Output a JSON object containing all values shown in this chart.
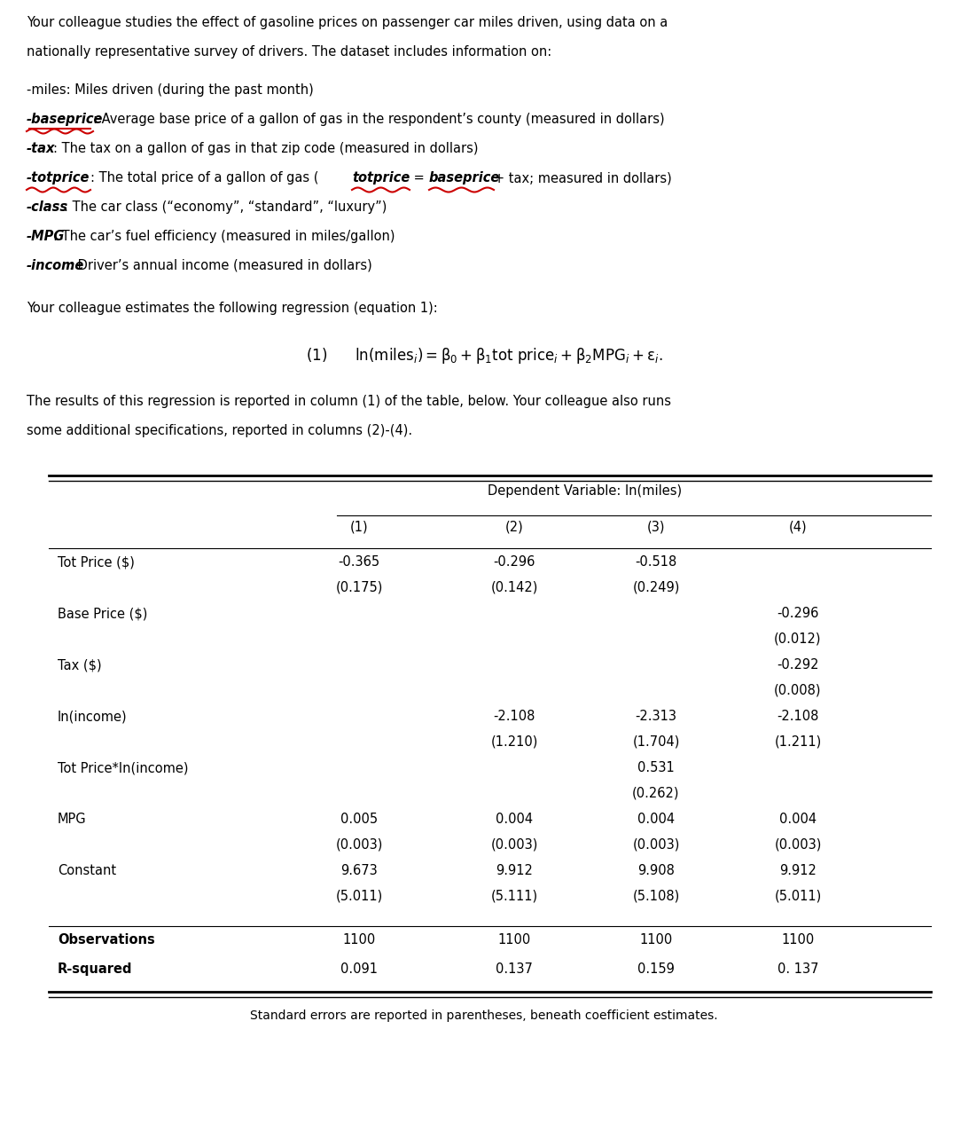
{
  "intro_text": "Your colleague studies the effect of gasoline prices on passenger car miles driven, using data on a\nnationally representative survey of drivers. The dataset includes information on:",
  "bullet_points": [
    {
      "-miles": "Miles driven (during the past month)"
    },
    {
      "-baseprice": "Average base price of a gallon of gas in the respondent’s county (measured in dollars)"
    },
    {
      "-tax": "The tax on a gallon of gas in that zip code (measured in dollars)"
    },
    {
      "-totprice": "The total price of a gallon of gas (totprice = baseprice + tax; measured in dollars)"
    },
    {
      "-class": "The car class (“economy”, “standard”, “luxury”)"
    },
    {
      "-MPG": "The car’s fuel efficiency (measured in miles/gallon)"
    },
    {
      "-income": "Driver’s annual income (measured in dollars)"
    }
  ],
  "pre_eq_text": "Your colleague estimates the following regression (equation 1):",
  "equation": "(1)      ln(milesᵢ) = β₀ + β₁tot priceᵢ + β₂MPGᵢ + εᵢ.",
  "post_eq_text": "The results of this regression is reported in column (1) of the table, below. Your colleague also runs\nsome additional specifications, reported in columns (2)-(4).",
  "table_header": "Dependent Variable: ln(miles)",
  "col_headers": [
    "",
    "(1)",
    "(2)",
    "(3)",
    "(4)"
  ],
  "rows": [
    {
      "label": "Tot Price ($)",
      "vals": [
        "-0.365",
        "-0.296",
        "-0.518",
        ""
      ],
      "se": [
        "(0.175)",
        "(0.142)",
        "(0.249)",
        ""
      ]
    },
    {
      "label": "Base Price ($)",
      "vals": [
        "",
        "",
        "",
        "-0.296"
      ],
      "se": [
        "",
        "",
        "",
        "(0.012)"
      ]
    },
    {
      "label": "Tax ($)",
      "vals": [
        "",
        "",
        "",
        "-0.292"
      ],
      "se": [
        "",
        "",
        "",
        "(0.008)"
      ]
    },
    {
      "label": "In(income)",
      "vals": [
        "",
        "-2.108",
        "-2.313",
        "-2.108"
      ],
      "se": [
        "",
        "(1.210)",
        "(1.704)",
        "(1.211)"
      ]
    },
    {
      "label": "Tot Price*In(income)",
      "vals": [
        "",
        "",
        "0.531",
        ""
      ],
      "se": [
        "",
        "",
        "(0.262)",
        ""
      ]
    },
    {
      "label": "MPG",
      "vals": [
        "0.005",
        "0.004",
        "0.004",
        "0.004"
      ],
      "se": [
        "(0.003)",
        "(0.003)",
        "(0.003)",
        "(0.003)"
      ]
    },
    {
      "label": "Constant",
      "vals": [
        "9.673",
        "9.912",
        "9.908",
        "9.912"
      ],
      "se": [
        "(5.011)",
        "(5.111)",
        "(5.108)",
        "(5.011)"
      ]
    }
  ],
  "bottom_rows": [
    {
      "label": "Observations",
      "vals": [
        "1100",
        "1100",
        "1100",
        "1100"
      ]
    },
    {
      "label": "R-squared",
      "vals": [
        "0.091",
        "0.137",
        "0.159",
        "0. 137"
      ]
    }
  ],
  "footnote": "Standard errors are reported in parentheses, beneath coefficient estimates.",
  "bg_color": "#ffffff",
  "text_color": "#000000",
  "red_color": "#cc0000"
}
